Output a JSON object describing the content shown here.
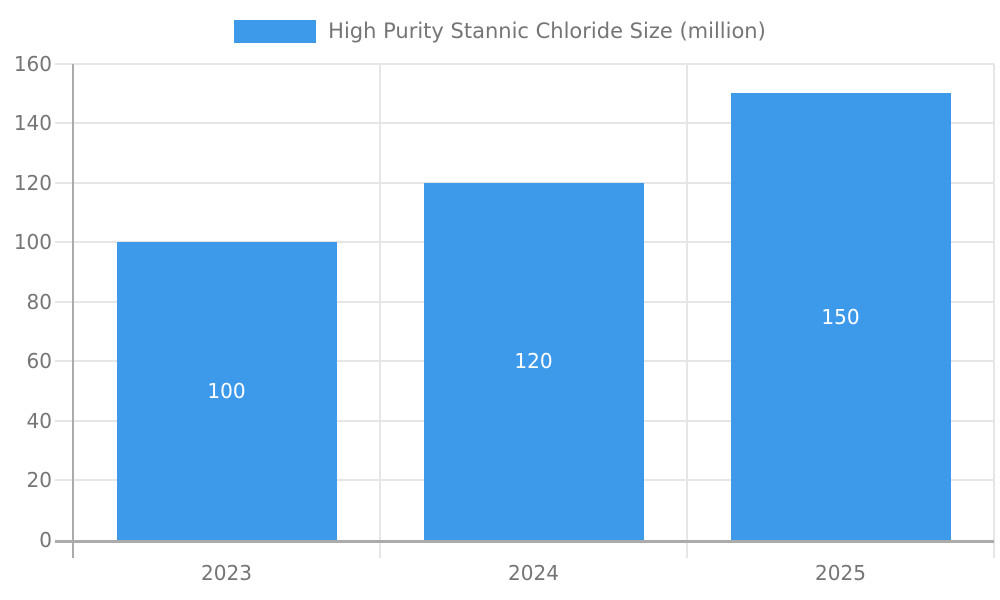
{
  "chart_data": {
    "type": "bar",
    "title": "",
    "categories": [
      "2023",
      "2024",
      "2025"
    ],
    "series": [
      {
        "name": "High Purity Stannic Chloride Size (million)",
        "values": [
          100,
          120,
          150
        ]
      }
    ],
    "data_labels": [
      "100",
      "120",
      "150"
    ],
    "xlabel": "",
    "ylabel": "",
    "ylim": [
      0,
      160
    ],
    "ytick_step": 20,
    "ytick_labels": [
      "0",
      "20",
      "40",
      "60",
      "80",
      "100",
      "120",
      "140",
      "160"
    ],
    "grid": true,
    "vertical_grid": true,
    "legend_position": "top-center",
    "value_labels_inside_bars": true
  },
  "legend": {
    "label": "High Purity Stannic Chloride Size (million)"
  },
  "colors": {
    "bar": "#3D9AEB",
    "grid": "#E6E6E6",
    "axis": "#ABABAB",
    "tick_label": "#757575",
    "legend_text": "#757575",
    "value_label": "#FFFFFF",
    "background": "#FFFFFF"
  }
}
